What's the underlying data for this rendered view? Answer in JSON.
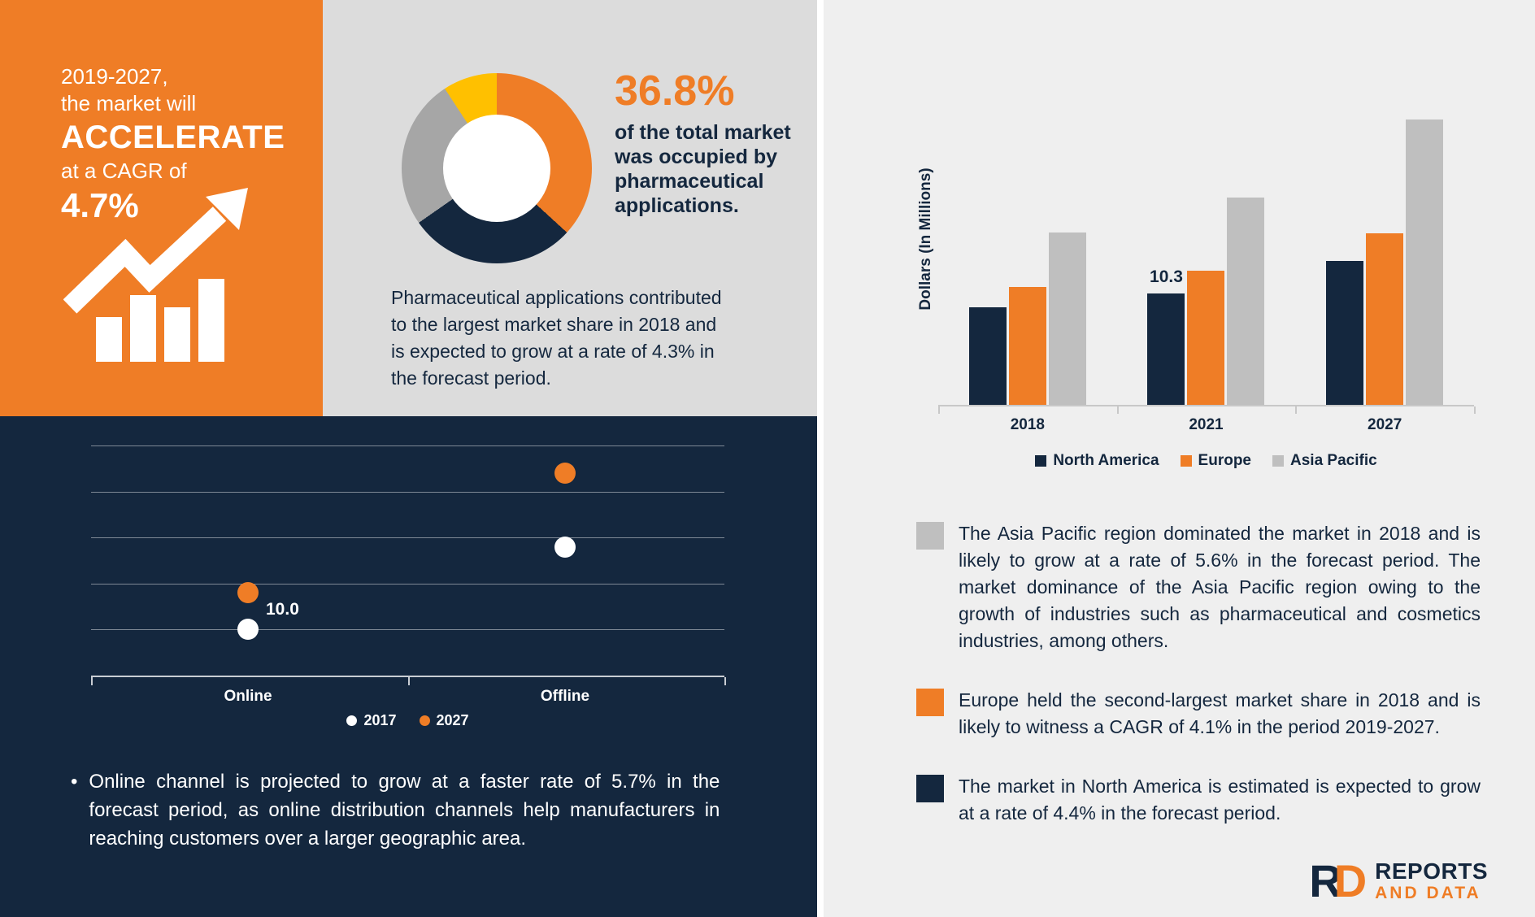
{
  "colors": {
    "orange": "#EF7D26",
    "navy": "#14273E",
    "panel_gray": "#DCDCDC",
    "panel_light": "#EFEFEF",
    "bar_gray": "#BFBFBF",
    "donut_gray": "#A6A6A6",
    "yellow": "#FFC000",
    "white": "#FFFFFF"
  },
  "cagr_panel": {
    "line1": "2019-2027,",
    "line2": "the market will",
    "line3": "ACCELERATE",
    "line4": "at a CAGR of",
    "line5": "4.7%"
  },
  "application_panel": {
    "headline_value": "36.8%",
    "headline_text": "of the total market was occupied by pharmaceutical applications.",
    "body_text": "Pharmaceutical applications contributed to the largest market share in 2018 and is expected to grow at a rate of 4.3% in the forecast period."
  },
  "channel_panel": {
    "bullet_glyph": "•",
    "bullet_text": "Online channel is projected to grow at a faster rate of 5.7% in the forecast period, as online distribution channels help manufacturers in reaching customers over a larger geographic area."
  },
  "regional_panel": {
    "insights": [
      {
        "marker_color": "#BFBFBF",
        "text": "The Asia Pacific region dominated the market in 2018 and is likely to grow at a rate of 5.6% in the forecast period. The market dominance of the Asia Pacific region owing to the growth of industries such as pharmaceutical and cosmetics industries, among others."
      },
      {
        "marker_color": "#EF7D26",
        "text": "Europe held the second-largest market share in 2018 and is likely to witness a CAGR of 4.1% in the period 2019-2027."
      },
      {
        "marker_color": "#14273E",
        "text": "The market in North America is estimated is expected to grow at a rate of 4.4% in the forecast period."
      }
    ]
  },
  "logo": {
    "monogram_r": "R",
    "monogram_d": "D",
    "line1": "REPORTS",
    "line2": "AND DATA"
  },
  "chart_data": [
    {
      "type": "pie",
      "subtype": "donut",
      "segments": [
        {
          "label": "Pharmaceutical applications",
          "value": 36.8,
          "color": "#EF7D26"
        },
        {
          "label": "",
          "value": 28.5,
          "color": "#14273E"
        },
        {
          "label": "",
          "value": 25.5,
          "color": "#A6A6A6"
        },
        {
          "label": "",
          "value": 9.2,
          "color": "#FFC000"
        }
      ],
      "annotation": "36.8% of the total market was occupied by pharmaceutical applications."
    },
    {
      "type": "scatter",
      "categories": [
        "Online",
        "Offline"
      ],
      "series": [
        {
          "name": "2017",
          "color": "#FFFFFF",
          "values": [
            10.0,
            11.8
          ]
        },
        {
          "name": "2027",
          "color": "#EF7D26",
          "values": [
            10.8,
            13.4
          ]
        }
      ],
      "ylim": [
        9,
        14
      ],
      "gridlines": 5,
      "legend_position": "bottom",
      "data_labels": [
        {
          "series": "2017",
          "category": "Online",
          "text": "10.0"
        }
      ]
    },
    {
      "type": "bar",
      "categories": [
        "2018",
        "2021",
        "2027"
      ],
      "series": [
        {
          "name": "North America",
          "color": "#14273E",
          "values": [
            9.0,
            10.3,
            13.3
          ]
        },
        {
          "name": "Europe",
          "color": "#EF7D26",
          "values": [
            10.9,
            12.4,
            15.8
          ]
        },
        {
          "name": "Asia Pacific",
          "color": "#BFBFBF",
          "values": [
            15.9,
            19.1,
            26.3
          ]
        }
      ],
      "ylabel": "Dollars (In Millions)",
      "ylim": [
        0,
        27
      ],
      "legend_position": "bottom",
      "data_labels": [
        {
          "series": "North America",
          "category": "2021",
          "text": "10.3"
        }
      ]
    }
  ]
}
